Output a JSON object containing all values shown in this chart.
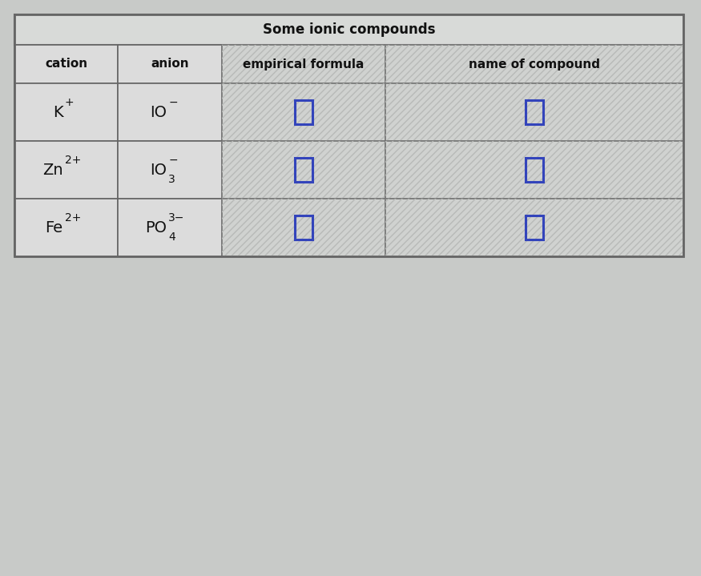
{
  "title": "Some ionic compounds",
  "headers": [
    "cation",
    "anion",
    "empirical formula",
    "name of compound"
  ],
  "cation_texts": [
    {
      "base": "K",
      "superscript": "+"
    },
    {
      "base": "Zn",
      "superscript": "2+"
    },
    {
      "base": "Fe",
      "superscript": "2+"
    }
  ],
  "anion_texts": [
    {
      "base": "IO",
      "superscript": "−",
      "subscript": ""
    },
    {
      "base": "IO",
      "superscript": "−",
      "subscript": "3"
    },
    {
      "base": "PO",
      "superscript": "3−",
      "subscript": "4"
    }
  ],
  "title_fontsize": 12,
  "header_fontsize": 11,
  "cell_fontsize": 13,
  "box_color": "#3344bb",
  "text_color": "#111111",
  "border_color": "#666666",
  "fig_bg": "#c8cac8",
  "plain_cell_bg": "#dcdcdc",
  "hatched_cell_bg": "#d0d2d0",
  "title_bg": "#d8dad8",
  "header_plain_bg": "#d0d2d0",
  "header_hatched_bg": "#c8cac8"
}
